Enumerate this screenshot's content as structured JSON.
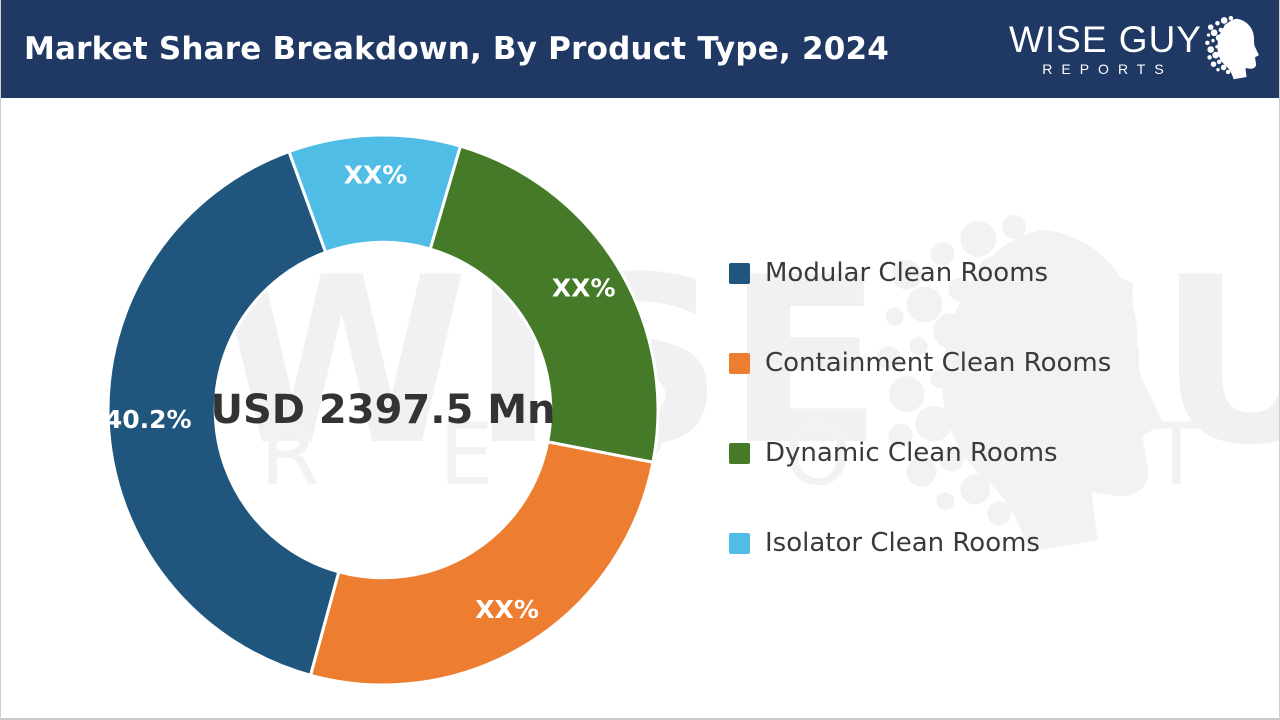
{
  "header": {
    "title": "Market Share Breakdown, By Product Type, 2024",
    "bg_color": "#1f3864",
    "logo": {
      "line1": "WISE GUY",
      "line2": "REPORTS"
    }
  },
  "watermark": {
    "line1": "WISE GU",
    "line2": "R E P O R T S"
  },
  "chart_data": {
    "type": "pie",
    "donut": true,
    "title": "Market Share Breakdown, By Product Type, 2024",
    "center_text": "USD 2397.5 Mn",
    "start_angle_deg": -20,
    "direction": "clockwise-from-top",
    "inner_radius_ratio": 0.61,
    "legend_position": "right",
    "series": [
      {
        "name": "Modular Clean Rooms",
        "value": 40.2,
        "label": "40.2%",
        "color": "#20567e"
      },
      {
        "name": "Containment Clean Rooms",
        "value": 26.2,
        "label": "XX%",
        "color": "#ed7d31"
      },
      {
        "name": "Dynamic Clean Rooms",
        "value": 23.5,
        "label": "XX%",
        "color": "#447a28"
      },
      {
        "name": "Isolator Clean Rooms",
        "value": 10.1,
        "label": "XX%",
        "color": "#4fbde6"
      }
    ]
  }
}
